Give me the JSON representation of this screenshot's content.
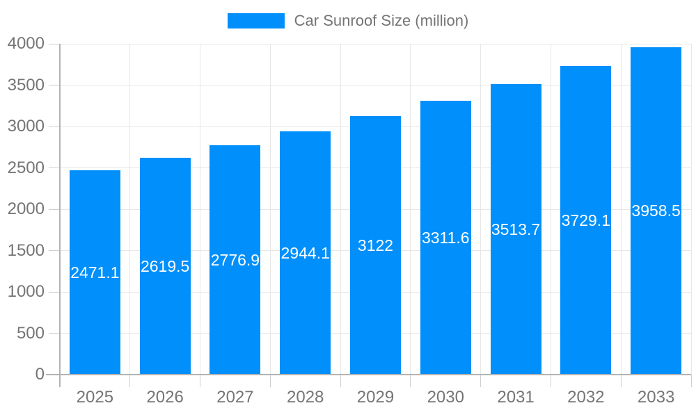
{
  "legend": {
    "label": "Car Sunroof Size (million)",
    "swatch_color": "#008ffb"
  },
  "chart_data": {
    "type": "bar",
    "title": "Car Sunroof Size (million)",
    "categories": [
      "2025",
      "2026",
      "2027",
      "2028",
      "2029",
      "2030",
      "2031",
      "2032",
      "2033"
    ],
    "values": [
      2471.1,
      2619.5,
      2776.9,
      2944.1,
      3122,
      3311.6,
      3513.7,
      3729.1,
      3958.5
    ],
    "value_labels": [
      "2471.1",
      "2619.5",
      "2776.9",
      "2944.1",
      "3122",
      "3311.6",
      "3513.7",
      "3729.1",
      "3958.5"
    ],
    "xlabel": "",
    "ylabel": "",
    "ylim": [
      0,
      4000
    ],
    "yticks": [
      0,
      500,
      1000,
      1500,
      2000,
      2500,
      3000,
      3500,
      4000
    ],
    "grid": true,
    "legend_position": "top",
    "bar_color": "#008ffb",
    "bar_label_color": "#ffffff",
    "axis_text_color": "#757575",
    "gridline_color": "#e7e7e7",
    "axis_line_color": "#b3b3b3"
  }
}
